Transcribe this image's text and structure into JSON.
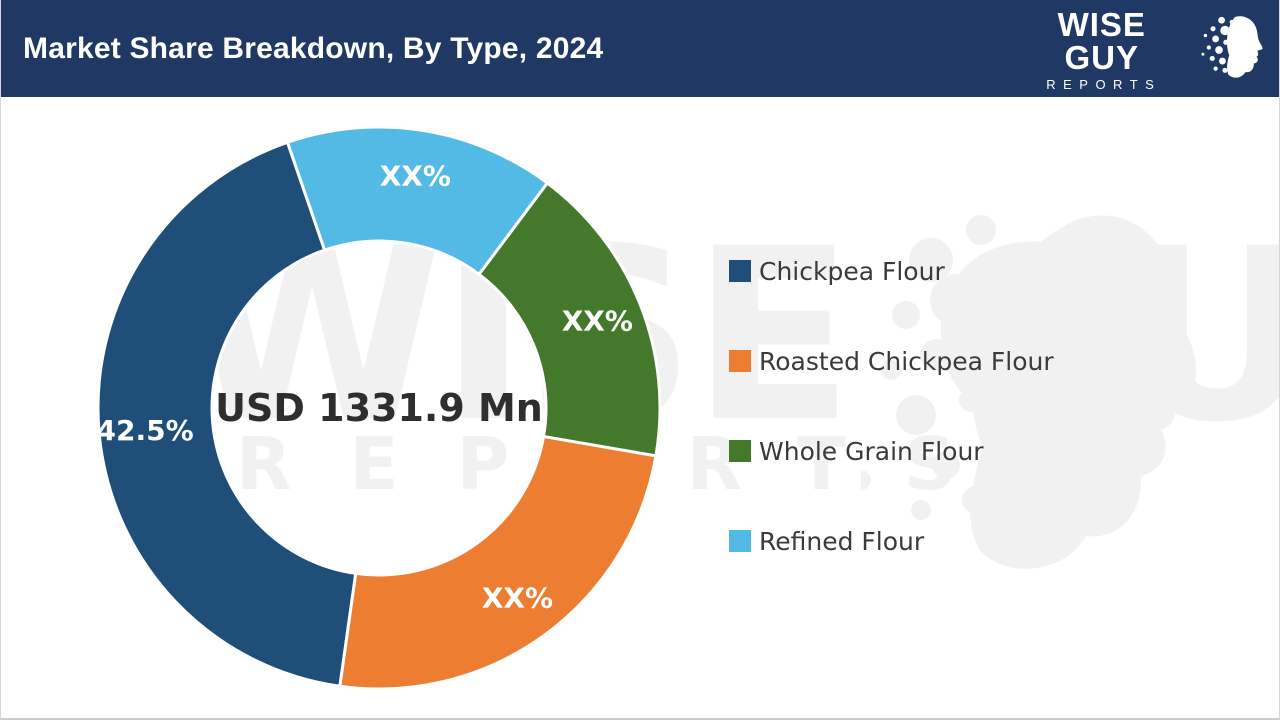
{
  "theme": {
    "header_bg": "#1F3864",
    "page_bg": "#FFFFFF",
    "border_color": "#CCCCCC",
    "title_color": "#FFFFFF",
    "center_text_color": "#2E2E2E",
    "legend_text_color": "#3A3A3A",
    "slice_label_color": "#FFFFFF",
    "watermark_color": "#F1F1F1"
  },
  "header": {
    "title": "Market Share Breakdown, By Type, 2024"
  },
  "logo": {
    "line1": "WISE GUY",
    "line2": "REPORTS",
    "face_icon": "dotted-head-profile"
  },
  "watermark": {
    "line1": "WISE GUY",
    "line2": "REPORTS"
  },
  "chart_data": {
    "type": "pie",
    "subtype": "donut",
    "title": "Market Share Breakdown, By Type, 2024",
    "center_text": "USD 1331.9 Mn",
    "unit": "percent",
    "start_angle_deg": 109,
    "counterclockwise": true,
    "legend_position": "right",
    "series": [
      {
        "name": "Chickpea Flour",
        "label": "42.5%",
        "value": 42.5,
        "color": "#1F4E79"
      },
      {
        "name": "Roasted Chickpea Flour",
        "label": "XX%",
        "value": 24.5,
        "color": "#ED7D31"
      },
      {
        "name": "Whole Grain Flour",
        "label": "XX%",
        "value": 17.5,
        "color": "#44792B"
      },
      {
        "name": "Refined Flour",
        "label": "XX%",
        "value": 15.5,
        "color": "#52BAE4"
      }
    ]
  }
}
